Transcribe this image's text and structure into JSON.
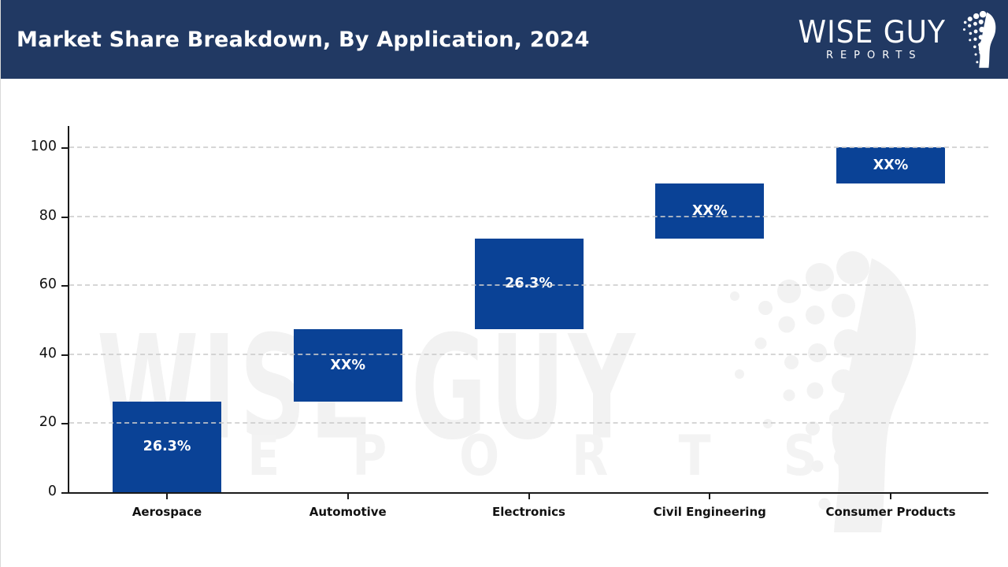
{
  "header": {
    "title": "Market Share Breakdown, By Application, 2024",
    "logo": {
      "line1": "WISE GUY",
      "line2": "REPORTS"
    }
  },
  "watermark": {
    "line1": "WISE GUY",
    "line2": "REPORTS"
  },
  "colors": {
    "header_bg": "#213963",
    "bar": "#0a4296",
    "bar_label_text": "#ffffff",
    "axis": "#1a1a1a",
    "grid": "#cccccc",
    "watermark": "#f2f2f2"
  },
  "chart_data": {
    "type": "bar",
    "subtype": "waterfall-floating-bars",
    "title": "Market Share Breakdown, By Application, 2024",
    "categories": [
      "Aerospace",
      "Automotive",
      "Electronics",
      "Civil Engineering",
      "Consumer Products"
    ],
    "segments": [
      {
        "category": "Aerospace",
        "start": 0,
        "end": 26.3,
        "label": "26.3%"
      },
      {
        "category": "Automotive",
        "start": 26.3,
        "end": 47.3,
        "label": "XX%"
      },
      {
        "category": "Electronics",
        "start": 47.3,
        "end": 73.6,
        "label": "26.3%"
      },
      {
        "category": "Civil Engineering",
        "start": 73.6,
        "end": 89.6,
        "label": "XX%"
      },
      {
        "category": "Consumer Products",
        "start": 89.6,
        "end": 100,
        "label": "XX%"
      }
    ],
    "xlabel": "",
    "ylabel": "",
    "ylim": [
      0,
      100
    ],
    "yticks": [
      0,
      20,
      40,
      60,
      80,
      100
    ],
    "grid": "horizontal-dashed-drawn-over-bars",
    "legend": "none"
  }
}
